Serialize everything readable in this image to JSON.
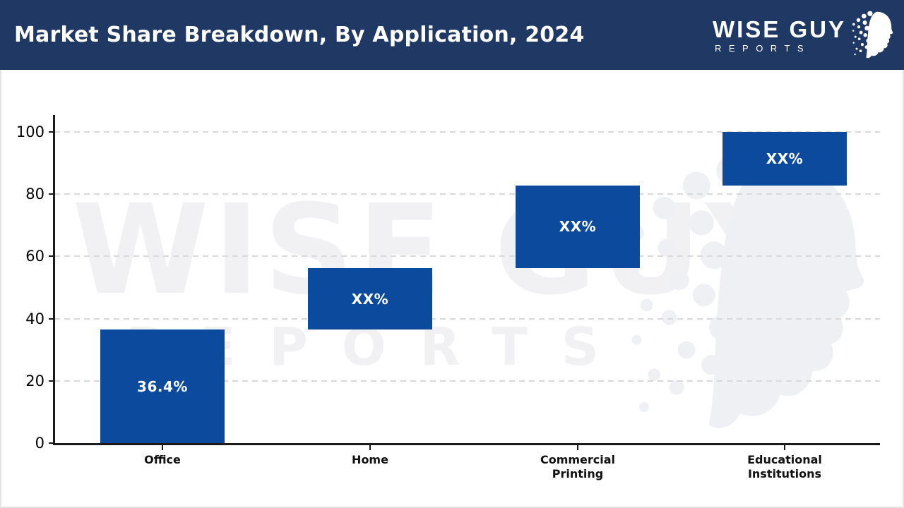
{
  "header": {
    "title": "Market Share Breakdown, By Application, 2024",
    "bg_color": "#203864",
    "logo": {
      "wordmark": "WISE GUY",
      "subtext": "REPORTS"
    }
  },
  "watermark": {
    "line1": "WISE GUY",
    "line2": "REPORTS"
  },
  "chart_data": {
    "type": "bar",
    "subtype": "floating-segment waterfall (cumulative market share breakdown)",
    "title": "Market Share Breakdown, By Application, 2024",
    "categories": [
      "Office",
      "Home",
      "Commercial Printing",
      "Educational Institutions"
    ],
    "category_label_lines": [
      [
        "Office"
      ],
      [
        "Home"
      ],
      [
        "Commercial",
        "Printing"
      ],
      [
        "Educational",
        "Institutions"
      ]
    ],
    "segments": [
      {
        "category": "Office",
        "start": 0,
        "end": 36.4,
        "label": "36.4%"
      },
      {
        "category": "Home",
        "start": 36.4,
        "end": 56.2,
        "label": "XX%"
      },
      {
        "category": "Commercial Printing",
        "start": 56.2,
        "end": 82.8,
        "label": "XX%"
      },
      {
        "category": "Educational Institutions",
        "start": 82.8,
        "end": 100,
        "label": "XX%"
      }
    ],
    "xlabel": "",
    "ylabel": "",
    "ylim": [
      0,
      105
    ],
    "yticks": [
      "0",
      "20",
      "40",
      "60",
      "80",
      "100"
    ],
    "grid": "horizontal dashed",
    "legend": null,
    "colors": {
      "bar": "#0c4a9e",
      "bar_label": "#ffffff",
      "grid": "#d9d9d9",
      "axis": "#1a1a1a",
      "tick_label": "#000000",
      "header_bg": "#203864",
      "watermark": "#f1f1f4"
    }
  }
}
